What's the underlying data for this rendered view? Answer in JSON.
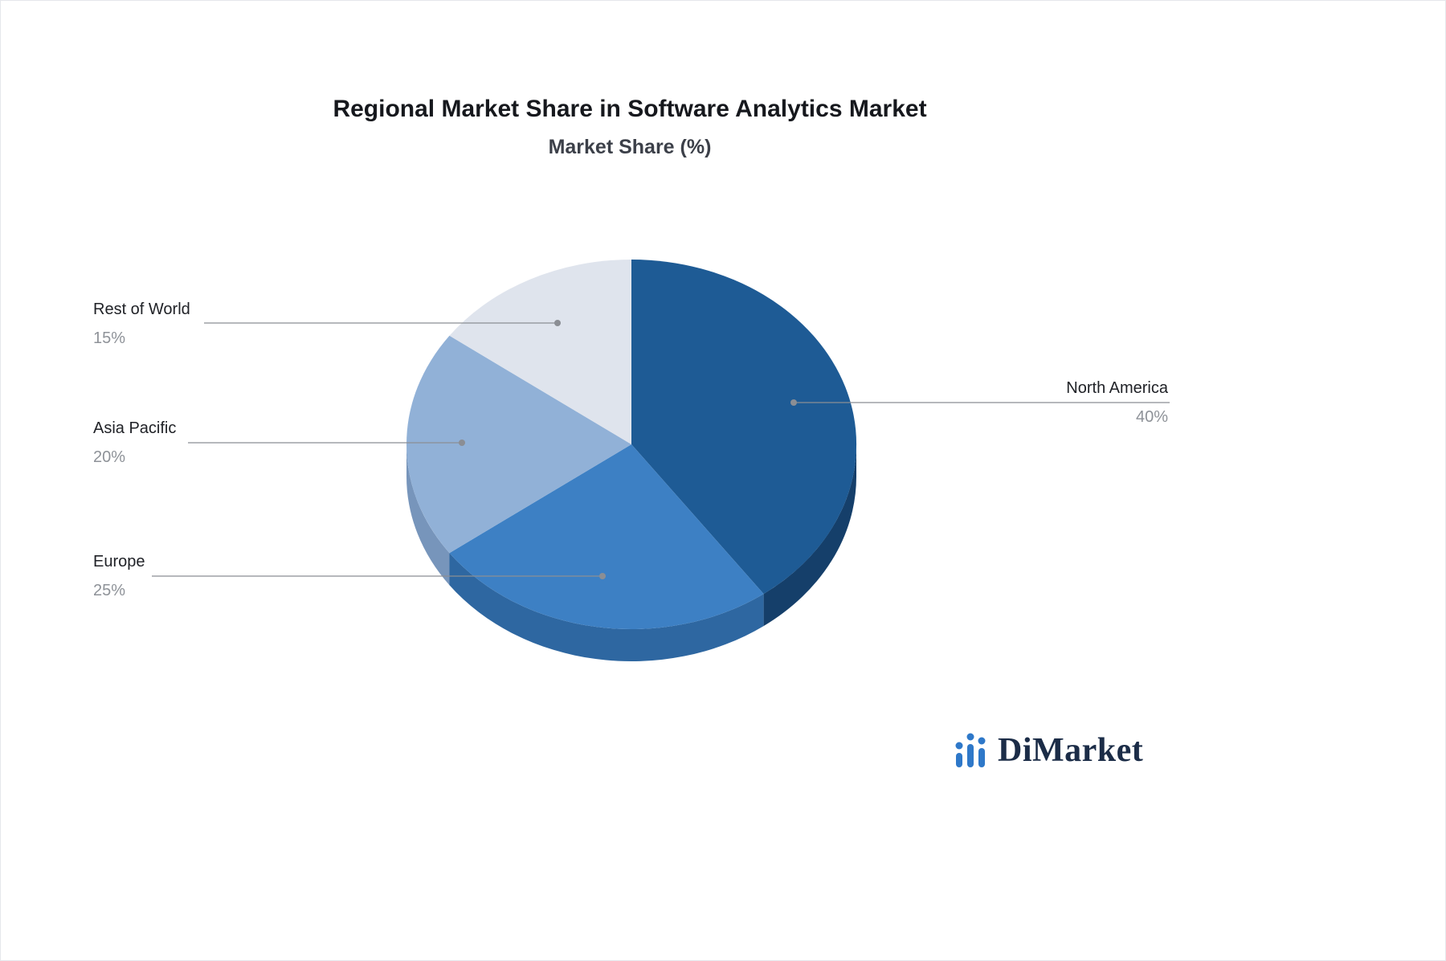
{
  "page": {
    "background": "#ffffff"
  },
  "header": {
    "title": "Regional Market Share in Software Analytics Market",
    "subtitle": "Market Share (%)"
  },
  "chart_data": {
    "type": "pie",
    "style": "3d",
    "title": "Regional Market Share in Software Analytics Market",
    "subtitle": "Market Share (%)",
    "unit": "%",
    "direction": "clockwise",
    "start_angle_deg": 0,
    "legend_position": "none",
    "labels": [
      "North America",
      "Europe",
      "Asia Pacific",
      "Rest of World"
    ],
    "values": [
      40,
      25,
      20,
      15
    ],
    "value_labels": [
      "40%",
      "25%",
      "20%",
      "15%"
    ],
    "colors": [
      "#1e5b95",
      "#3d80c4",
      "#91b1d7",
      "#dfe4ed"
    ],
    "side_colors": [
      "#153f6a",
      "#2e67a1",
      "#7795bb",
      "#c2cbd8"
    ],
    "label_color": "#202227",
    "value_color": "#8e9298",
    "leader_line_color": "#8b8e94"
  },
  "brand": {
    "name": "DiMarket",
    "icon": "bar-chart-logo-icon",
    "icon_color": "#2e78c9",
    "text_color": "#1b2c47"
  }
}
